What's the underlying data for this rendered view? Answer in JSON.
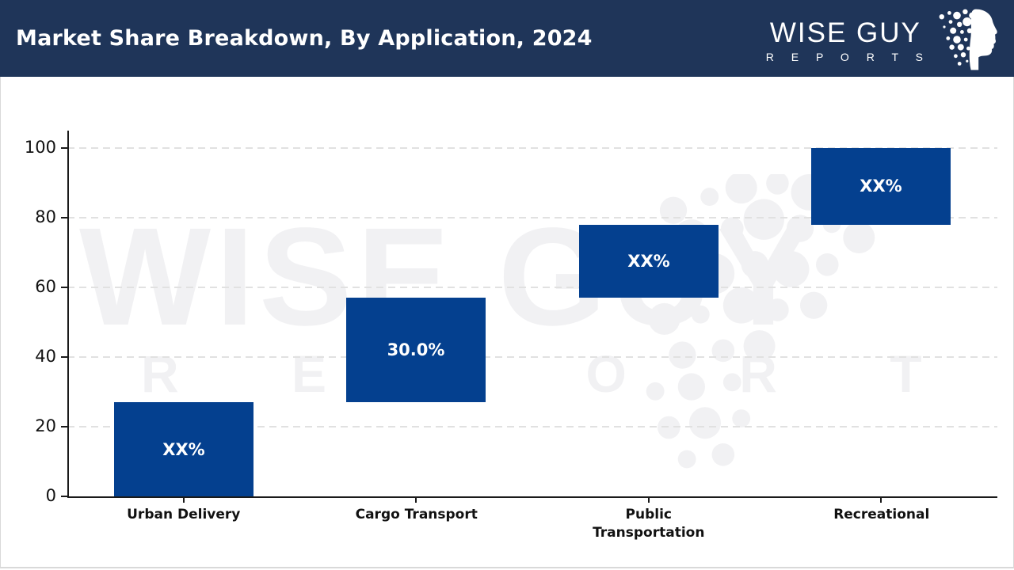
{
  "header": {
    "title": "Market Share Breakdown, By Application, 2024",
    "brand": {
      "name": "WISE GUY",
      "tagline": "R E P O R T S"
    }
  },
  "watermark": {
    "name": "WISE GUY",
    "tagline": "R E P O R T S"
  },
  "colors": {
    "header_bg": "#1f3559",
    "bar": "#04408f",
    "bar_label": "#ffffff",
    "grid": "#e1e1e1",
    "axis": "#1a1a1a",
    "watermark": "#f1f1f3",
    "page_border": "#d9d9d9"
  },
  "chart_data": {
    "type": "bar",
    "subtype": "floating-waterfall",
    "title": "Market Share Breakdown, By Application, 2024",
    "categories": [
      "Urban Delivery",
      "Cargo Transport",
      "Public\nTransportation",
      "Recreational"
    ],
    "bars": [
      {
        "category": "Urban Delivery",
        "label": "XX%",
        "start": 0,
        "end": 27,
        "value": 27
      },
      {
        "category": "Cargo Transport",
        "label": "30.0%",
        "start": 27,
        "end": 57,
        "value": 30
      },
      {
        "category": "Public Transportation",
        "label": "XX%",
        "start": 57,
        "end": 78,
        "value": 21
      },
      {
        "category": "Recreational",
        "label": "XX%",
        "start": 78,
        "end": 100,
        "value": 22
      }
    ],
    "yticks": [
      0,
      20,
      40,
      60,
      80,
      100
    ],
    "ylim": [
      0,
      105
    ],
    "xlabel": "",
    "ylabel": "",
    "grid": "horizontal-dashed",
    "legend": null
  }
}
